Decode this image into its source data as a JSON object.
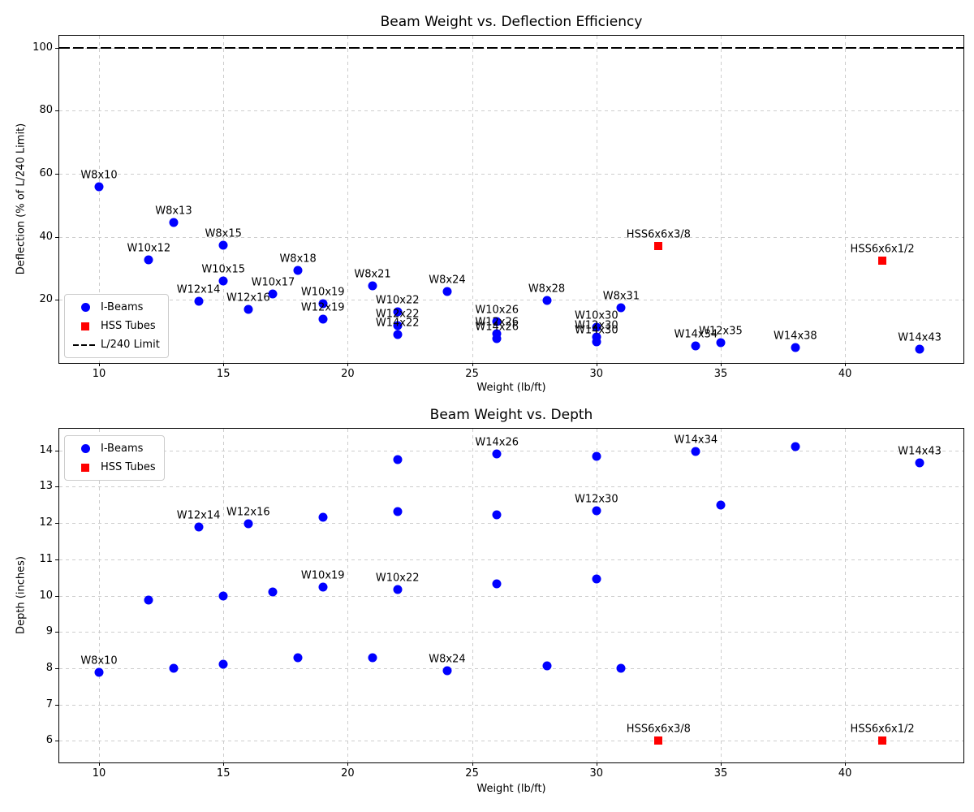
{
  "figure": {
    "background": "#ffffff",
    "text_color": "#000000",
    "grid_color": "#cdcdcd"
  },
  "chart_data": [
    {
      "type": "scatter",
      "title": "Beam Weight vs. Deflection Efficiency",
      "xlabel": "Weight (lb/ft)",
      "ylabel": "Deflection (% of L/240 Limit)",
      "xlim": [
        8.4,
        44.76
      ],
      "ylim": [
        0,
        103.8
      ],
      "xticks": [
        10,
        15,
        20,
        25,
        30,
        35,
        40
      ],
      "yticks": [
        20,
        40,
        60,
        80,
        100
      ],
      "grid": true,
      "limit_line": {
        "y": 100,
        "label": "L/240 Limit",
        "color": "#000000",
        "style": "dashed"
      },
      "legend": {
        "position": "lower-left",
        "items": [
          {
            "label": "I-Beams",
            "marker": "circle",
            "color": "#0000ff"
          },
          {
            "label": "HSS Tubes",
            "marker": "square",
            "color": "#ff0000"
          },
          {
            "label": "L/240 Limit",
            "marker": "dash",
            "color": "#000000"
          }
        ]
      },
      "series": [
        {
          "name": "I-Beams",
          "marker": "circle",
          "color": "#0000ff",
          "points": [
            {
              "label": "W8x10",
              "x": 10,
              "y": 56.0,
              "annotated": true
            },
            {
              "label": "W10x12",
              "x": 12,
              "y": 32.6,
              "annotated": true
            },
            {
              "label": "W8x13",
              "x": 13,
              "y": 44.6,
              "annotated": true
            },
            {
              "label": "W12x14",
              "x": 14,
              "y": 19.6,
              "annotated": true
            },
            {
              "label": "W8x15",
              "x": 15,
              "y": 37.4,
              "annotated": true
            },
            {
              "label": "W10x15",
              "x": 15,
              "y": 25.9,
              "annotated": true
            },
            {
              "label": "W12x16",
              "x": 16,
              "y": 17.1,
              "annotated": true
            },
            {
              "label": "W10x17",
              "x": 17,
              "y": 22.0,
              "annotated": true
            },
            {
              "label": "W8x18",
              "x": 18,
              "y": 29.3,
              "annotated": true
            },
            {
              "label": "W10x19",
              "x": 19,
              "y": 18.8,
              "annotated": true
            },
            {
              "label": "W12x19",
              "x": 19,
              "y": 13.8,
              "annotated": true
            },
            {
              "label": "W8x21",
              "x": 21,
              "y": 24.4,
              "annotated": true
            },
            {
              "label": "W10x22",
              "x": 22,
              "y": 16.2,
              "annotated": true
            },
            {
              "label": "W12x22",
              "x": 22,
              "y": 11.9,
              "annotated": true
            },
            {
              "label": "W14x22",
              "x": 22,
              "y": 9.1,
              "annotated": true
            },
            {
              "label": "W8x24",
              "x": 24,
              "y": 22.6,
              "annotated": true
            },
            {
              "label": "W10x26",
              "x": 26,
              "y": 13.2,
              "annotated": true
            },
            {
              "label": "W12x26",
              "x": 26,
              "y": 9.3,
              "annotated": true
            },
            {
              "label": "W14x26",
              "x": 26,
              "y": 7.7,
              "annotated": true
            },
            {
              "label": "W8x28",
              "x": 28,
              "y": 19.8,
              "annotated": true
            },
            {
              "label": "W10x30",
              "x": 30,
              "y": 11.4,
              "annotated": true
            },
            {
              "label": "W12x30",
              "x": 30,
              "y": 8.2,
              "annotated": true
            },
            {
              "label": "W14x30",
              "x": 30,
              "y": 6.7,
              "annotated": true
            },
            {
              "label": "W8x31",
              "x": 31,
              "y": 17.5,
              "annotated": true
            },
            {
              "label": "W14x34",
              "x": 34,
              "y": 5.4,
              "annotated": true
            },
            {
              "label": "W12x35",
              "x": 35,
              "y": 6.5,
              "annotated": true
            },
            {
              "label": "W14x38",
              "x": 38,
              "y": 4.9,
              "annotated": true
            },
            {
              "label": "W14x43",
              "x": 43,
              "y": 4.3,
              "annotated": true
            }
          ]
        },
        {
          "name": "HSS Tubes",
          "marker": "square",
          "color": "#ff0000",
          "points": [
            {
              "label": "HSS6x6x3/8",
              "x": 32.5,
              "y": 37.2,
              "annotated": true
            },
            {
              "label": "HSS6x6x1/2",
              "x": 41.5,
              "y": 32.4,
              "annotated": true
            }
          ]
        }
      ]
    },
    {
      "type": "scatter",
      "title": "Beam Weight vs. Depth",
      "xlabel": "Weight (lb/ft)",
      "ylabel": "Depth (inches)",
      "xlim": [
        8.4,
        44.76
      ],
      "ylim": [
        5.4,
        14.6
      ],
      "xticks": [
        10,
        15,
        20,
        25,
        30,
        35,
        40
      ],
      "yticks": [
        6,
        7,
        8,
        9,
        10,
        11,
        12,
        13,
        14
      ],
      "grid": true,
      "limit_line": null,
      "legend": {
        "position": "upper-left",
        "items": [
          {
            "label": "I-Beams",
            "marker": "circle",
            "color": "#0000ff"
          },
          {
            "label": "HSS Tubes",
            "marker": "square",
            "color": "#ff0000"
          }
        ]
      },
      "series": [
        {
          "name": "I-Beams",
          "marker": "circle",
          "color": "#0000ff",
          "points": [
            {
              "label": "W8x10",
              "x": 10,
              "y": 7.89,
              "annotated": true
            },
            {
              "label": "W10x12",
              "x": 12,
              "y": 9.87,
              "annotated": false
            },
            {
              "label": "W8x13",
              "x": 13,
              "y": 7.99,
              "annotated": false
            },
            {
              "label": "W12x14",
              "x": 14,
              "y": 11.9,
              "annotated": true
            },
            {
              "label": "W8x15",
              "x": 15,
              "y": 8.11,
              "annotated": false
            },
            {
              "label": "W10x15",
              "x": 15,
              "y": 9.99,
              "annotated": false
            },
            {
              "label": "W12x16",
              "x": 16,
              "y": 11.99,
              "annotated": true
            },
            {
              "label": "W10x17",
              "x": 17,
              "y": 10.11,
              "annotated": false
            },
            {
              "label": "W8x18",
              "x": 18,
              "y": 8.28,
              "annotated": false
            },
            {
              "label": "W10x19",
              "x": 19,
              "y": 10.24,
              "annotated": true
            },
            {
              "label": "W12x19",
              "x": 19,
              "y": 12.16,
              "annotated": false
            },
            {
              "label": "W8x21",
              "x": 21,
              "y": 8.28,
              "annotated": false
            },
            {
              "label": "W10x22",
              "x": 22,
              "y": 10.17,
              "annotated": true
            },
            {
              "label": "W12x22",
              "x": 22,
              "y": 12.31,
              "annotated": false
            },
            {
              "label": "W14x22",
              "x": 22,
              "y": 13.74,
              "annotated": false
            },
            {
              "label": "W8x24",
              "x": 24,
              "y": 7.93,
              "annotated": true
            },
            {
              "label": "W10x26",
              "x": 26,
              "y": 10.33,
              "annotated": false
            },
            {
              "label": "W12x26",
              "x": 26,
              "y": 12.22,
              "annotated": false
            },
            {
              "label": "W14x26",
              "x": 26,
              "y": 13.91,
              "annotated": true
            },
            {
              "label": "W8x28",
              "x": 28,
              "y": 8.06,
              "annotated": false
            },
            {
              "label": "W10x30",
              "x": 30,
              "y": 10.47,
              "annotated": false
            },
            {
              "label": "W12x30",
              "x": 30,
              "y": 12.34,
              "annotated": true
            },
            {
              "label": "W14x30",
              "x": 30,
              "y": 13.84,
              "annotated": false
            },
            {
              "label": "W8x31",
              "x": 31,
              "y": 8.0,
              "annotated": false
            },
            {
              "label": "W14x34",
              "x": 34,
              "y": 13.98,
              "annotated": true
            },
            {
              "label": "W12x35",
              "x": 35,
              "y": 12.5,
              "annotated": false
            },
            {
              "label": "W14x38",
              "x": 38,
              "y": 14.1,
              "annotated": false
            },
            {
              "label": "W14x43",
              "x": 43,
              "y": 13.66,
              "annotated": true
            }
          ]
        },
        {
          "name": "HSS Tubes",
          "marker": "square",
          "color": "#ff0000",
          "points": [
            {
              "label": "HSS6x6x3/8",
              "x": 32.5,
              "y": 6.0,
              "annotated": true
            },
            {
              "label": "HSS6x6x1/2",
              "x": 41.5,
              "y": 6.0,
              "annotated": true
            }
          ]
        }
      ]
    }
  ]
}
